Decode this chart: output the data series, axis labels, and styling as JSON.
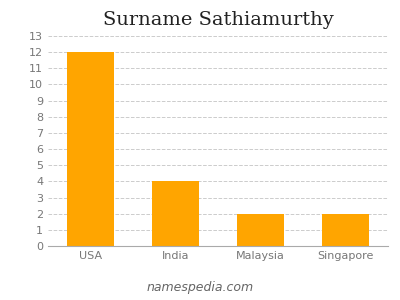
{
  "title": "Surname Sathiamurthy",
  "categories": [
    "USA",
    "India",
    "Malaysia",
    "Singapore"
  ],
  "values": [
    12,
    4,
    2,
    2
  ],
  "bar_color": "#FFA500",
  "ylim": [
    0,
    13
  ],
  "yticks": [
    0,
    1,
    2,
    3,
    4,
    5,
    6,
    7,
    8,
    9,
    10,
    11,
    12,
    13
  ],
  "grid_color": "#cccccc",
  "background_color": "#ffffff",
  "title_fontsize": 14,
  "tick_fontsize": 8,
  "footer_text": "namespedia.com",
  "footer_fontsize": 9,
  "bar_width": 0.55
}
